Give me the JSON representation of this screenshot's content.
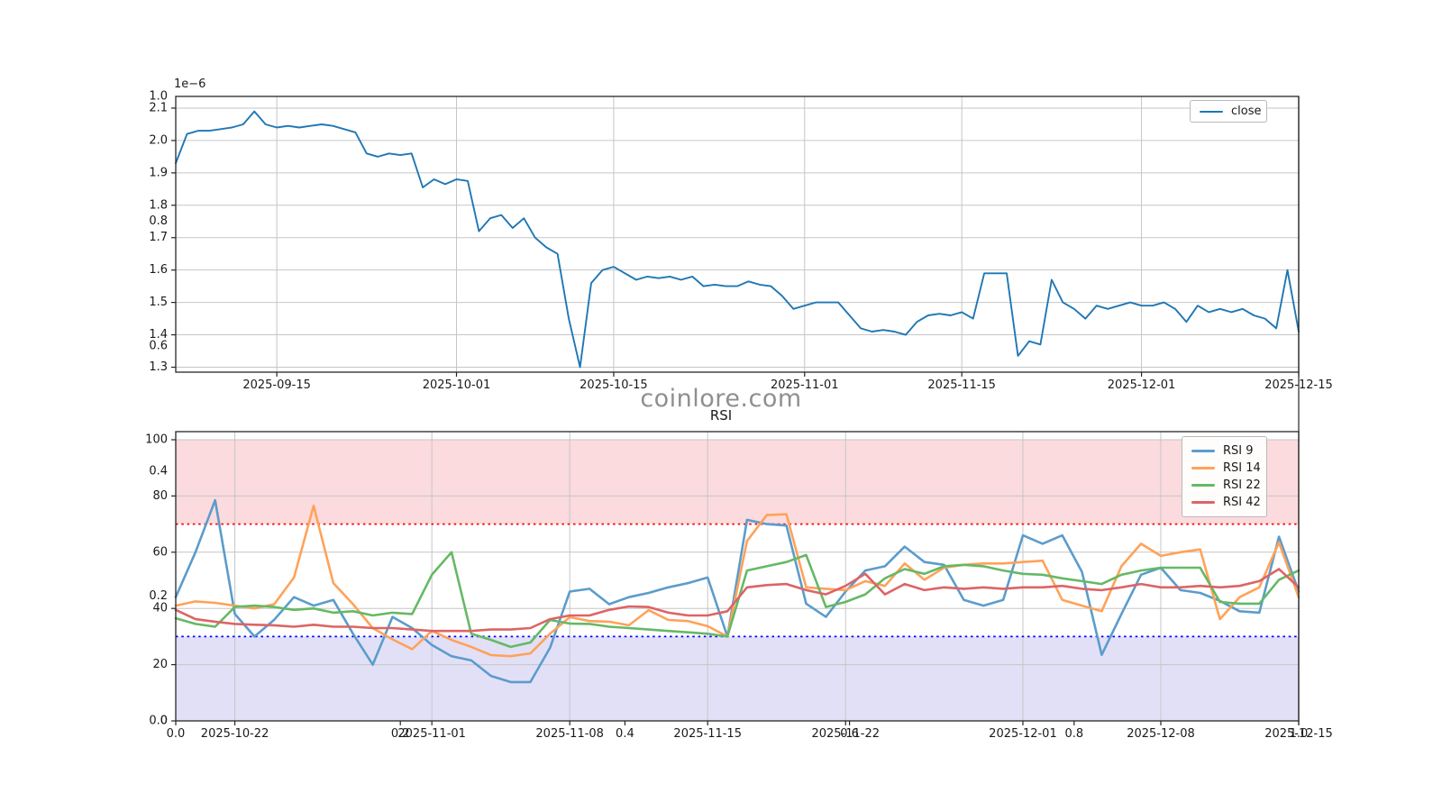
{
  "watermark": "coinlore.com",
  "artifact_axis": {
    "x_labels": [
      "0.0",
      "0.2",
      "0.4",
      "0.6",
      "0.8",
      "1.0"
    ],
    "y_labels": [
      "1.0",
      "0.8",
      "0.6",
      "0.4",
      "0.2",
      "0.0"
    ]
  },
  "chart_data": [
    {
      "type": "line",
      "title": "",
      "offset_label": "1e−6",
      "grid": true,
      "legend_position": "upper right",
      "x_start": "2025-09-06",
      "x_end": "2025-12-15",
      "total_days": 100,
      "x_ticks": [
        {
          "label": "2025-09-15",
          "day": 9
        },
        {
          "label": "2025-10-01",
          "day": 25
        },
        {
          "label": "2025-10-15",
          "day": 39
        },
        {
          "label": "2025-11-01",
          "day": 56
        },
        {
          "label": "2025-11-15",
          "day": 70
        },
        {
          "label": "2025-12-01",
          "day": 86
        },
        {
          "label": "2025-12-15",
          "day": 100
        }
      ],
      "y_ticks": [
        "2.1",
        "2.0",
        "1.9",
        "1.8",
        "1.7",
        "1.6",
        "1.5",
        "1.4",
        "1.3"
      ],
      "ylim": [
        1.285,
        2.136
      ],
      "y_unit": "1e-6",
      "series": [
        {
          "name": "close",
          "color": "#1f77b4",
          "values": [
            1.93,
            2.02,
            2.03,
            2.03,
            2.035,
            2.04,
            2.05,
            2.09,
            2.05,
            2.04,
            2.045,
            2.04,
            2.045,
            2.05,
            2.045,
            2.035,
            2.025,
            1.96,
            1.95,
            1.96,
            1.955,
            1.96,
            1.855,
            1.88,
            1.865,
            1.88,
            1.875,
            1.72,
            1.76,
            1.77,
            1.73,
            1.76,
            1.7,
            1.67,
            1.65,
            1.45,
            1.3,
            1.56,
            1.6,
            1.61,
            1.59,
            1.57,
            1.58,
            1.575,
            1.58,
            1.57,
            1.58,
            1.55,
            1.555,
            1.55,
            1.55,
            1.565,
            1.555,
            1.55,
            1.52,
            1.48,
            1.49,
            1.5,
            1.5,
            1.5,
            1.46,
            1.42,
            1.41,
            1.415,
            1.41,
            1.4,
            1.44,
            1.46,
            1.465,
            1.46,
            1.47,
            1.45,
            1.59,
            1.59,
            1.59,
            1.335,
            1.38,
            1.37,
            1.57,
            1.5,
            1.48,
            1.45,
            1.49,
            1.48,
            1.49,
            1.5,
            1.49,
            1.49,
            1.5,
            1.48,
            1.44,
            1.49,
            1.47,
            1.48,
            1.47,
            1.48,
            1.46,
            1.45,
            1.42,
            1.6,
            1.41
          ]
        }
      ]
    },
    {
      "type": "line",
      "title": "RSI",
      "grid": true,
      "legend_position": "upper right",
      "x_start": "2025-10-19",
      "x_end": "2025-12-15",
      "total_days": 57,
      "x_ticks": [
        {
          "label": "2025-10-22",
          "day": 3
        },
        {
          "label": "2025-11-01",
          "day": 13
        },
        {
          "label": "2025-11-08",
          "day": 20
        },
        {
          "label": "2025-11-15",
          "day": 27
        },
        {
          "label": "2025-11-22",
          "day": 34
        },
        {
          "label": "2025-12-01",
          "day": 43
        },
        {
          "label": "2025-12-08",
          "day": 50
        },
        {
          "label": "2025-12-15",
          "day": 57
        }
      ],
      "y_ticks": [
        "100",
        "80",
        "60",
        "40",
        "20",
        "0"
      ],
      "ylim": [
        0,
        103
      ],
      "overbought_level": 70,
      "oversold_level": 30,
      "overbought_band_color": "#fbdbdd",
      "oversold_band_color": "#e2e0f7",
      "overbought_line_color": "#ff0000",
      "oversold_line_color": "#0000ff",
      "series": [
        {
          "name": "RSI 9",
          "color": "#5b9ccc",
          "values": [
            44,
            60,
            78.5,
            38,
            30,
            36,
            44,
            41,
            43,
            31,
            20,
            37,
            33,
            27,
            23,
            21.5,
            16,
            13.8,
            13.8,
            26,
            46,
            47,
            41.5,
            44,
            45.5,
            47.5,
            49,
            51,
            30,
            71.5,
            70,
            69.5,
            41.7,
            37,
            46,
            53.5,
            55,
            62,
            56.5,
            55.5,
            43,
            41,
            43,
            66,
            63,
            66,
            53,
            23.5,
            38,
            52,
            54.5,
            46.5,
            45.5,
            42.7,
            39,
            38.5,
            65.5,
            46
          ]
        },
        {
          "name": "RSI 14",
          "color": "#ffa259",
          "values": [
            41,
            42.5,
            42,
            41,
            40,
            41.5,
            51,
            76.5,
            49,
            41.5,
            33,
            29,
            25.5,
            32,
            28.8,
            26.3,
            23.4,
            23,
            24,
            31,
            36.9,
            35.5,
            35.3,
            34,
            39.4,
            35.9,
            35.5,
            33.7,
            30,
            64,
            73.2,
            73.5,
            47.5,
            47,
            46.5,
            49.7,
            48,
            56,
            50.2,
            54.5,
            55.5,
            56,
            56,
            56.5,
            57,
            43,
            41,
            39,
            55,
            63,
            58.7,
            60,
            61,
            36.2,
            44,
            47.5,
            63.5,
            44
          ]
        },
        {
          "name": "RSI 22",
          "color": "#65b965",
          "values": [
            36.5,
            34.5,
            33.5,
            40.5,
            41,
            40.5,
            39.5,
            40,
            38.5,
            39,
            37.5,
            38.5,
            38,
            52,
            60,
            31,
            28.8,
            26.3,
            27.9,
            35.9,
            34.6,
            34.5,
            33.5,
            33,
            32.5,
            32,
            31.5,
            31,
            30,
            53.5,
            55,
            56.5,
            59,
            40.5,
            42.3,
            45,
            50.7,
            54,
            52.3,
            55,
            55.5,
            55,
            53.5,
            52.3,
            52,
            50.7,
            49.7,
            48.7,
            52,
            53.5,
            54.5,
            54.5,
            54.5,
            42.3,
            41.7,
            41.7,
            50.2,
            53.5
          ]
        },
        {
          "name": "RSI 42",
          "color": "#dd6465",
          "values": [
            39.5,
            36.2,
            35.3,
            34.5,
            34.2,
            34,
            33.5,
            34.2,
            33.5,
            33.5,
            33,
            33,
            32.5,
            32,
            32,
            32,
            32.5,
            32.5,
            33,
            36.2,
            37.5,
            37.5,
            39.5,
            40.7,
            40.5,
            38.5,
            37.5,
            37.5,
            39,
            47.5,
            48.3,
            48.7,
            46.5,
            45,
            48,
            52.3,
            45,
            48.7,
            46.5,
            47.5,
            47,
            47.5,
            47,
            47.5,
            47.5,
            48,
            47,
            46.5,
            47.5,
            48.7,
            47.5,
            47.5,
            48,
            47.5,
            48,
            49.7,
            54,
            47.5
          ]
        }
      ]
    }
  ]
}
